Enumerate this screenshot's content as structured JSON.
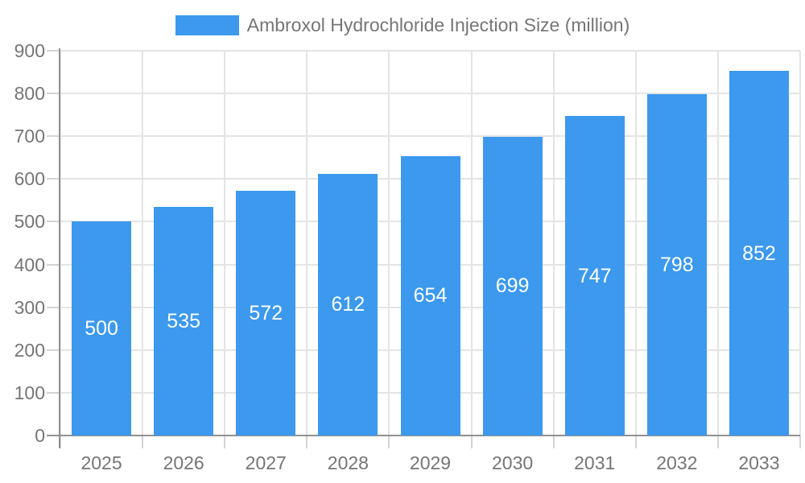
{
  "chart_data": {
    "type": "bar",
    "title": "Ambroxol Hydrochloride Injection Size (million)",
    "legend_entries": [
      "Ambroxol Hydrochloride Injection Size (million)"
    ],
    "legend_position": "top",
    "categories": [
      "2025",
      "2026",
      "2027",
      "2028",
      "2029",
      "2030",
      "2031",
      "2032",
      "2033"
    ],
    "series": [
      {
        "name": "Ambroxol Hydrochloride Injection Size (million)",
        "values": [
          500,
          535,
          572,
          612,
          654,
          699,
          747,
          798,
          852
        ]
      }
    ],
    "data_labels": [
      "500",
      "535",
      "572",
      "612",
      "654",
      "699",
      "747",
      "798",
      "852"
    ],
    "xlabel": "",
    "ylabel": "",
    "ylim": [
      0,
      900
    ],
    "ytick_interval": 100,
    "yticks": [
      "0",
      "100",
      "200",
      "300",
      "400",
      "500",
      "600",
      "700",
      "800",
      "900"
    ],
    "grid": true,
    "colors": {
      "bar": "#3C99ED",
      "bar_label_text": "#ffffff",
      "axis_text": "#757575",
      "grid_line": "#e4e4e4",
      "tick_line": "#d4d4d4",
      "axis_line": "#919191",
      "background": "#ffffff"
    }
  }
}
